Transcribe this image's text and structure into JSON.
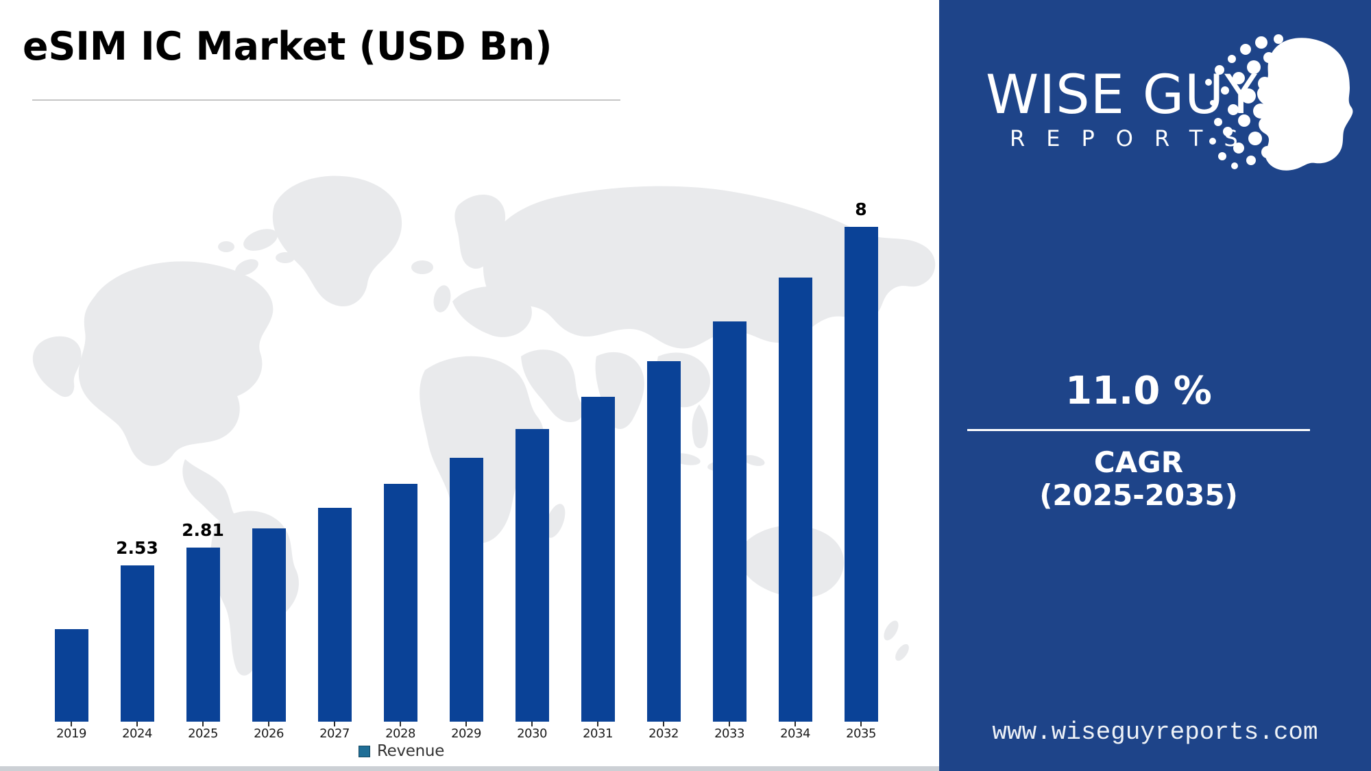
{
  "header": {
    "title": "eSIM IC Market (USD Bn)"
  },
  "chart_data": {
    "type": "bar",
    "title": "eSIM IC Market (USD Bn)",
    "categories": [
      "2019",
      "2024",
      "2025",
      "2026",
      "2027",
      "2028",
      "2029",
      "2030",
      "2031",
      "2032",
      "2033",
      "2034",
      "2035"
    ],
    "series": [
      {
        "name": "Revenue",
        "color": "#0a4297",
        "values": [
          1.5,
          2.53,
          2.81,
          3.12,
          3.46,
          3.84,
          4.26,
          4.73,
          5.25,
          5.83,
          6.47,
          7.18,
          8
        ]
      }
    ],
    "value_labels": [
      "",
      "2.53",
      "2.81",
      "",
      "",
      "",
      "",
      "",
      "",
      "",
      "",
      "",
      "8"
    ],
    "xlabel": "",
    "ylabel": "",
    "ylim": [
      0,
      9.2
    ],
    "grid": false,
    "legend_position": "bottom-center",
    "legend_swatch_color": "#1f6e96",
    "background": "light-gray world map"
  },
  "sidebar": {
    "logo": {
      "line1": "WISE GUY",
      "line2": "REPORTS"
    },
    "cagr": {
      "value": "11.0 %",
      "label": "CAGR",
      "range": "(2025-2035)"
    },
    "website": "www.wiseguyreports.com",
    "background_color": "#1e4489"
  }
}
